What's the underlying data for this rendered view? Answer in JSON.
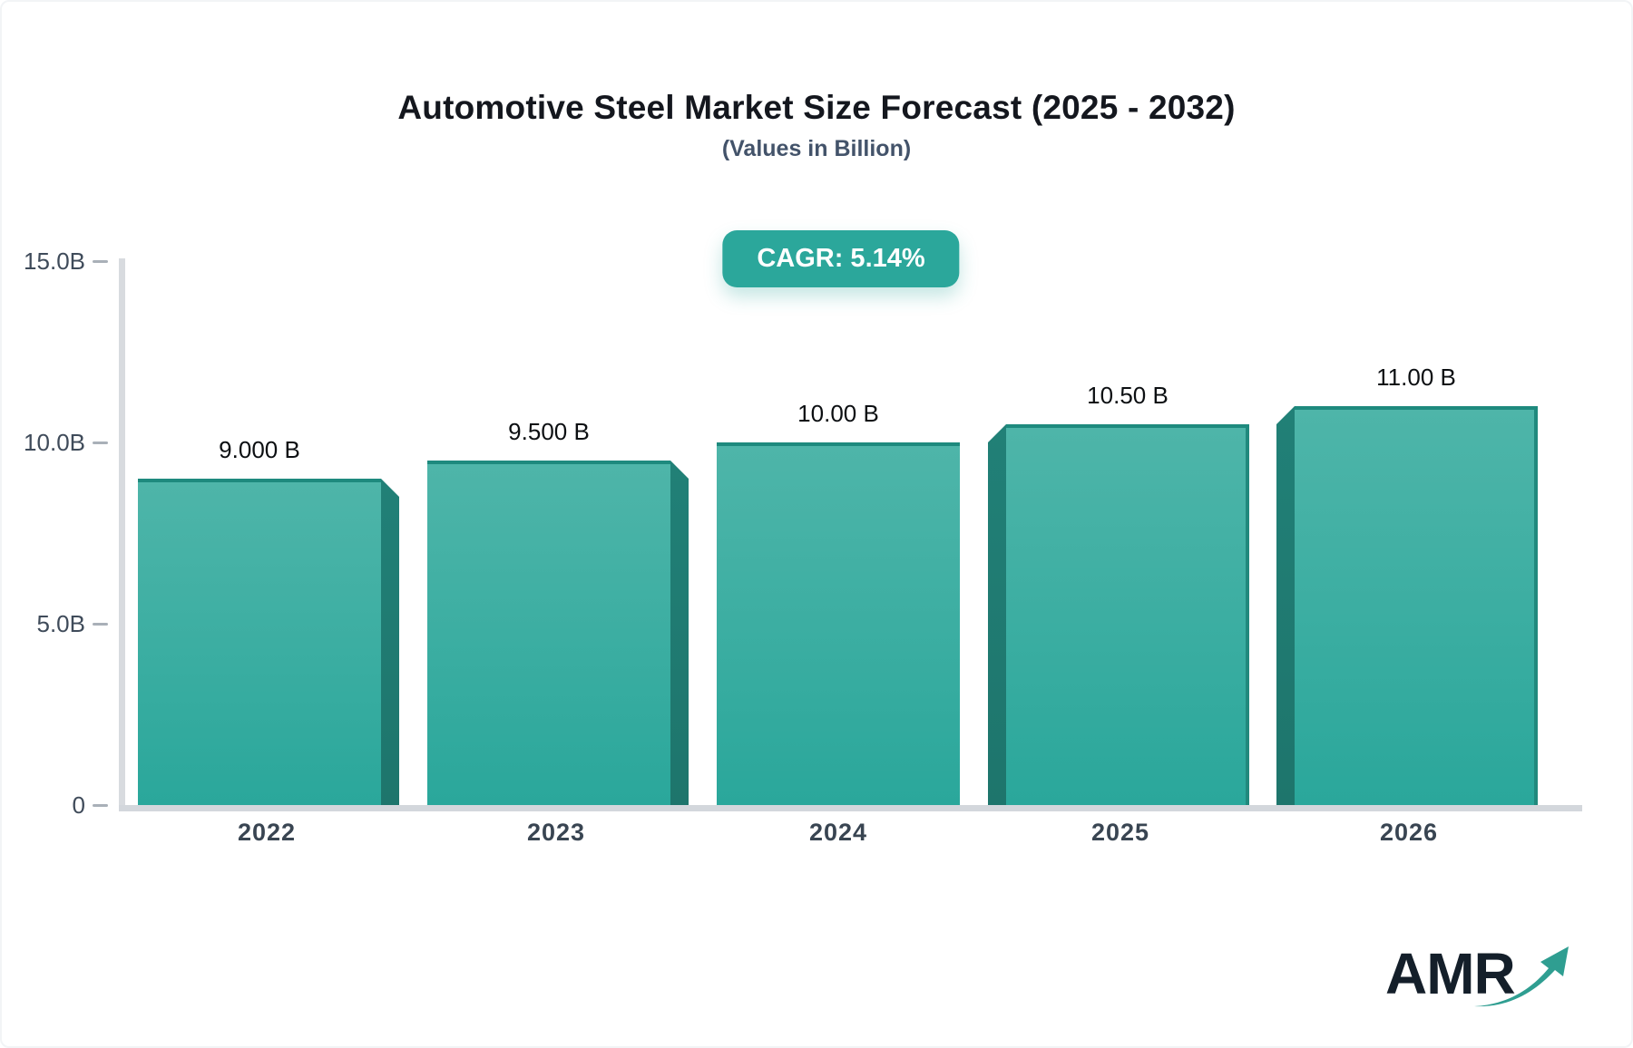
{
  "title": "Automotive Steel Market Size Forecast (2025 - 2032)",
  "subtitle": "(Values in Billion)",
  "badge": {
    "label": "CAGR: 5.14%",
    "bg_color": "#2BA79B"
  },
  "chart_data": {
    "type": "bar",
    "title": "Automotive Steel Market Size Forecast (2025 - 2032)",
    "subtitle": "(Values in Billion)",
    "annotation": "CAGR: 5.14%",
    "categories": [
      "2022",
      "2023",
      "2024",
      "2025",
      "2026"
    ],
    "values": [
      9.0,
      9.5,
      10.0,
      10.5,
      11.0
    ],
    "value_labels": [
      "9.000 B",
      "9.500 B",
      "10.00 B",
      "10.50 B",
      "11.00 B"
    ],
    "unit": "Billion",
    "ylim": [
      0,
      15
    ],
    "yticks": [
      {
        "value": 15,
        "label": "15.0B"
      },
      {
        "value": 10,
        "label": "10.0B"
      },
      {
        "value": 5,
        "label": "5.0B"
      },
      {
        "value": 0,
        "label": "0"
      }
    ],
    "grid": false,
    "legend": false,
    "bar_color_top": "#4EB5A9",
    "bar_color_bottom": "#2AA79B",
    "bar_side_color": "#1F7C72",
    "bar_top_edge_color": "#1E8A7E"
  },
  "logo": {
    "text": "AMR",
    "text_color": "#141F2A",
    "arrow_color": "#2F9E91"
  }
}
